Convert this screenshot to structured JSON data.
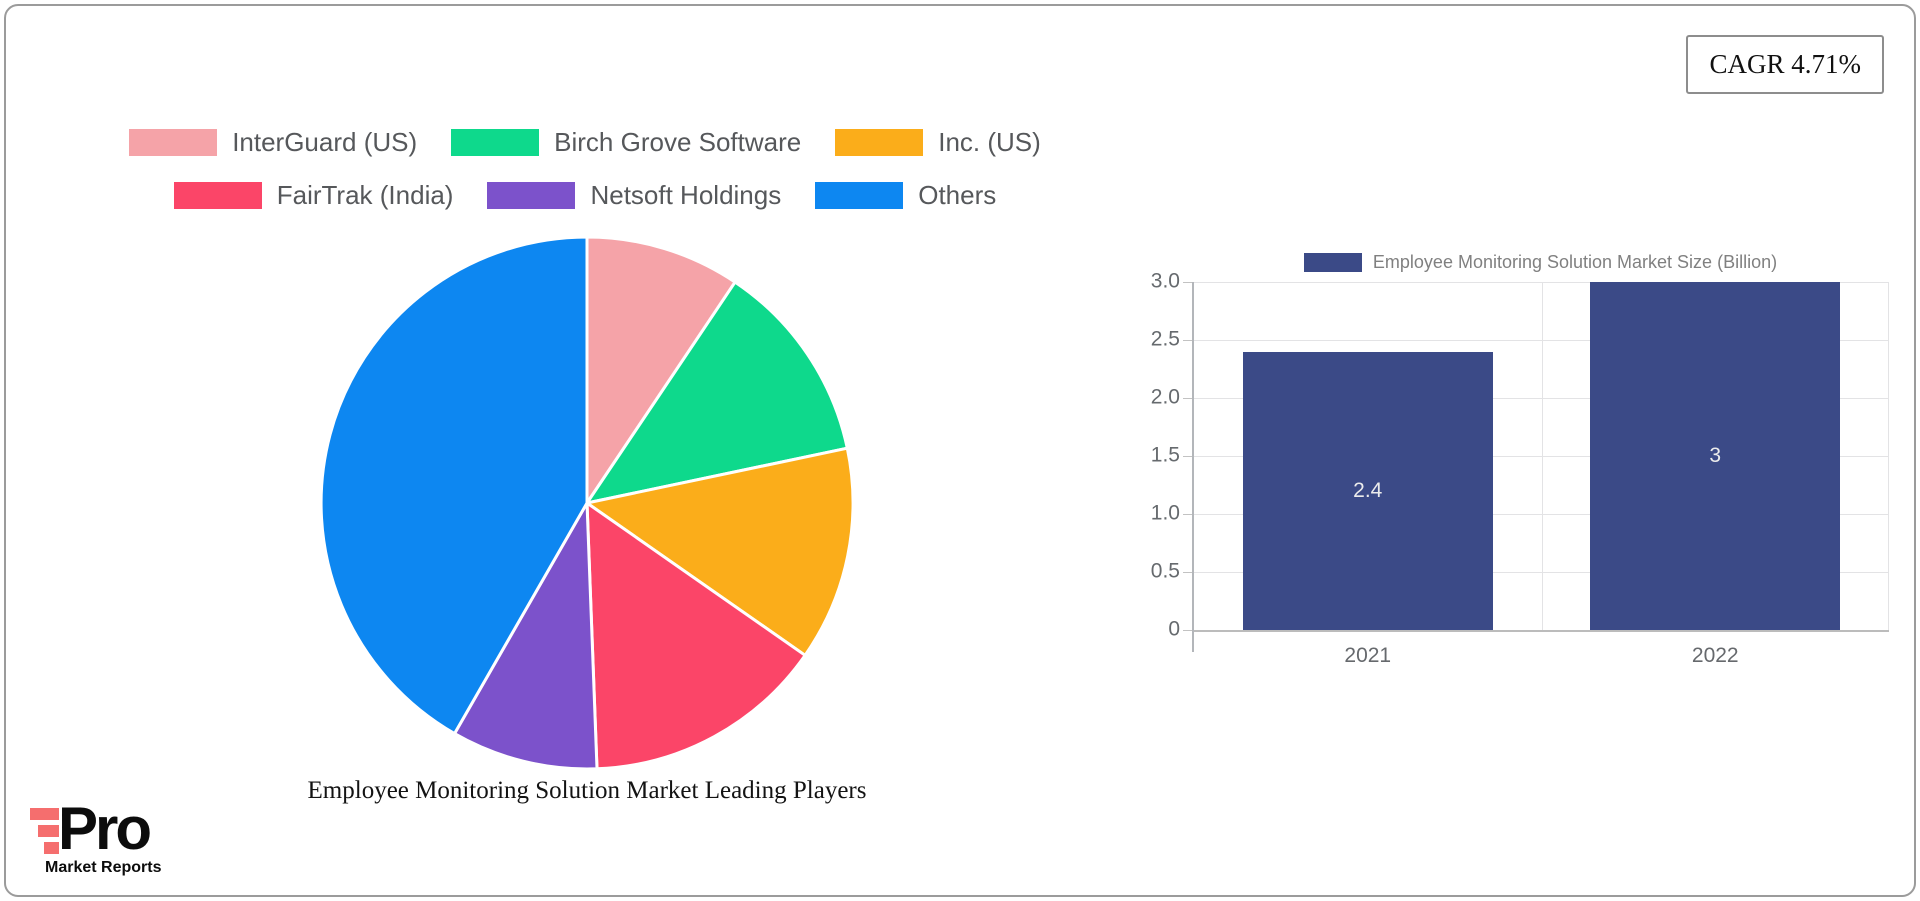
{
  "cagr_badge": "CAGR 4.71%",
  "brand": {
    "name": "Pro",
    "tagline": "Market Reports",
    "bar_color": "#F56E6E"
  },
  "chart_data": [
    {
      "type": "pie",
      "title": "Employee Monitoring Solution Market Leading Players",
      "legend_position": "top",
      "direction": "clockwise",
      "start_angle_deg": 0,
      "slices": [
        {
          "label": "InterGuard (US)",
          "percent": 9.4,
          "color": "#F5A3A8"
        },
        {
          "label": "Birch Grove Software",
          "percent": 12.3,
          "color": "#0ED98C"
        },
        {
          "label": "Inc. (US)",
          "percent": 13.0,
          "color": "#FBAD1A"
        },
        {
          "label": "FairTrak (India)",
          "percent": 14.7,
          "color": "#FB4568"
        },
        {
          "label": "Netsoft Holdings",
          "percent": 8.9,
          "color": "#7C52CB"
        },
        {
          "label": "Others",
          "percent": 41.7,
          "color": "#0D87F1"
        }
      ]
    },
    {
      "type": "bar",
      "legend": "Employee Monitoring Solution Market Size (Billion)",
      "categories": [
        "2021",
        "2022"
      ],
      "values": [
        2.4,
        3
      ],
      "bar_labels": [
        "2.4",
        "3"
      ],
      "bar_color": "#3B4A87",
      "ylim": [
        0,
        3
      ],
      "yticks": [
        "3.0",
        "2.5",
        "2.0",
        "1.5",
        "1.0",
        "0.5",
        "0"
      ],
      "grid": true
    }
  ]
}
